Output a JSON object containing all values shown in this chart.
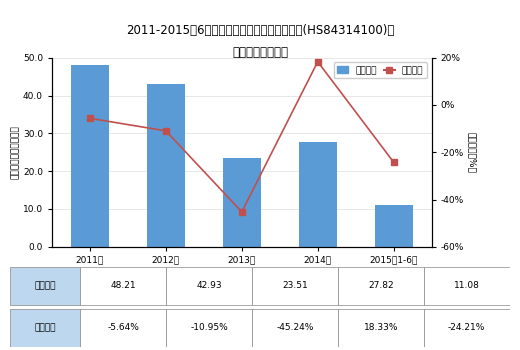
{
  "title_line1": "2011-2015年6月戽斗、夹斗、抓斗及其他铲斗(HS84314100)进",
  "title_line2": "口总额及增速统计",
  "categories": [
    "2011年",
    "2012年",
    "2013年",
    "2014年",
    "2015年1-6月"
  ],
  "bar_values": [
    48.21,
    42.93,
    23.51,
    27.82,
    11.08
  ],
  "line_values": [
    -5.64,
    -10.95,
    -45.24,
    18.33,
    -24.21
  ],
  "bar_color": "#5B9BD5",
  "line_color": "#C0504D",
  "ylabel_left": "进口金额（百万美元）",
  "ylabel_right": "同比增长（%）",
  "ylim_left": [
    0,
    50
  ],
  "ylim_right": [
    -60,
    20
  ],
  "yticks_left": [
    0.0,
    10.0,
    20.0,
    30.0,
    40.0,
    50.0
  ],
  "yticks_right": [
    -60,
    -40,
    -20,
    0,
    20
  ],
  "ytick_labels_right": [
    "-60%",
    "-40%",
    "-20%",
    "0%",
    "20%"
  ],
  "legend_bar": "进口金额",
  "legend_line": "同比增长",
  "table_row1_label": "进口金额",
  "table_row2_label": "同比增长",
  "table_row1": [
    "48.21",
    "42.93",
    "23.51",
    "27.82",
    "11.08"
  ],
  "table_row2": [
    "-5.64%",
    "-10.95%",
    "-45.24%",
    "18.33%",
    "-24.21%"
  ],
  "background_color": "#ffffff",
  "header_color": "#BDD7EE",
  "row_label_color": "#BDD7EE",
  "cell_color": "#ffffff",
  "border_color": "#888888"
}
